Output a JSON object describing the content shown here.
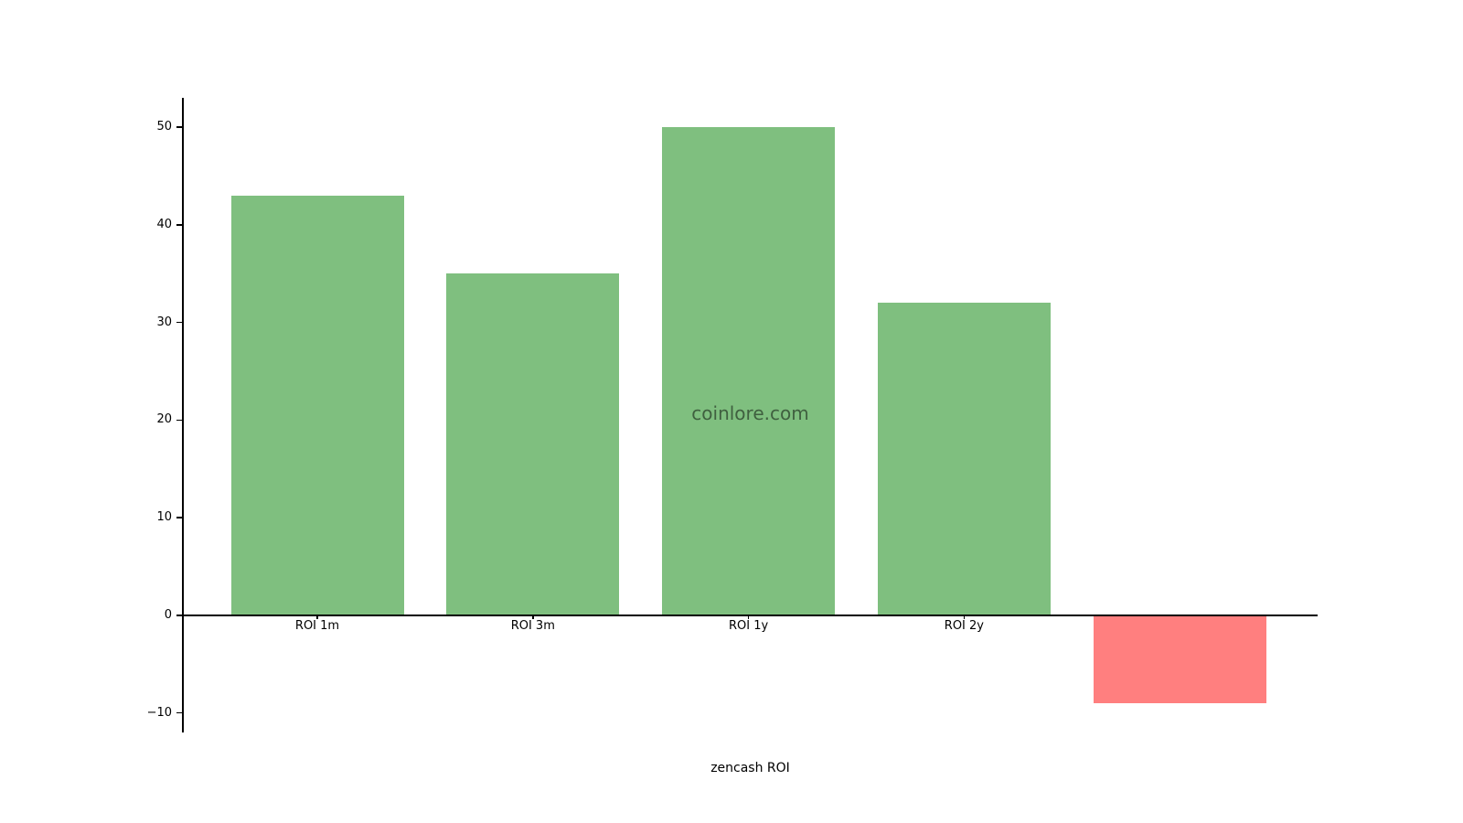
{
  "watermark": "coinlore.com",
  "chart_data": {
    "type": "bar",
    "title": "",
    "xlabel": "zencash ROI",
    "ylabel": "",
    "categories": [
      "ROI 1m",
      "ROI 3m",
      "ROI 1y",
      "ROI 2y",
      ""
    ],
    "values": [
      43,
      35,
      50,
      32,
      -9
    ],
    "yticks": [
      -10,
      0,
      10,
      20,
      30,
      40,
      50
    ],
    "ylim": [
      -12,
      53
    ],
    "grid": false,
    "legend_position": "none",
    "colors": {
      "bar_positive": "#7fbf7f",
      "bar_negative": "#ff7f7f",
      "axis": "#000000",
      "tick_text": "#000000",
      "watermark_text": "rgba(0,0,0,0.5)"
    }
  }
}
